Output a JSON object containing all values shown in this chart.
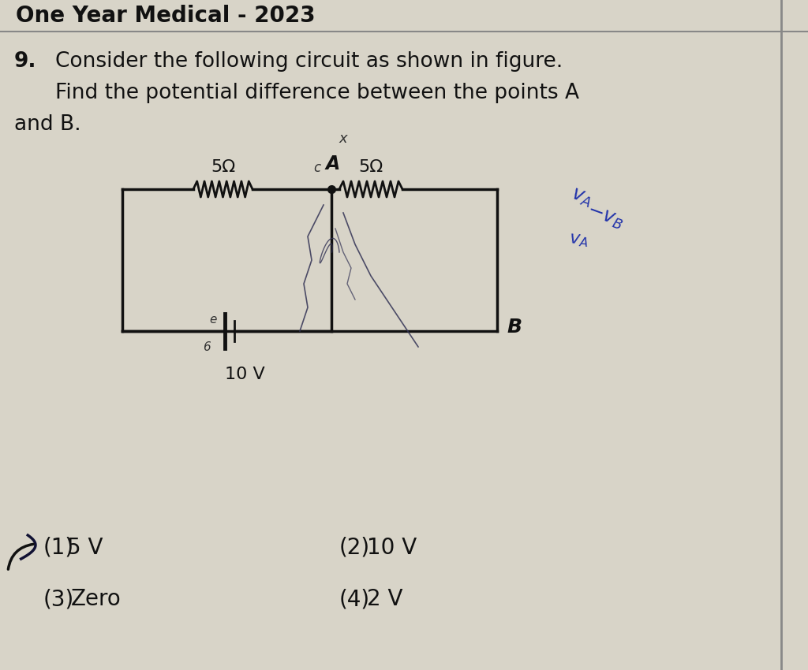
{
  "title_text": "One Year Medical - 2023",
  "question_number": "9.",
  "question_line1": "Consider the following circuit as shown in figure.",
  "question_line2": "Find the potential difference between the points A",
  "question_line3": "and B.",
  "opt1_num": "(1)",
  "opt1_text": "5 V",
  "opt2_num": "(2)",
  "opt2_text": "10 V",
  "opt3_num": "(3)",
  "opt3_text": "Zero",
  "opt4_num": "(4)",
  "opt4_text": "2 V",
  "resistor1_label": "5Ω",
  "resistor2_label": "5Ω",
  "battery_label": "10 V",
  "point_A_label": "A",
  "point_B_label": "B",
  "bg_color": "#d8d4c8",
  "text_color": "#111111",
  "circuit_color": "#111111",
  "title_fontsize": 20,
  "question_fontsize": 19,
  "option_fontsize": 20,
  "circuit_label_fontsize": 16,
  "annotation_color": "#2233aa"
}
